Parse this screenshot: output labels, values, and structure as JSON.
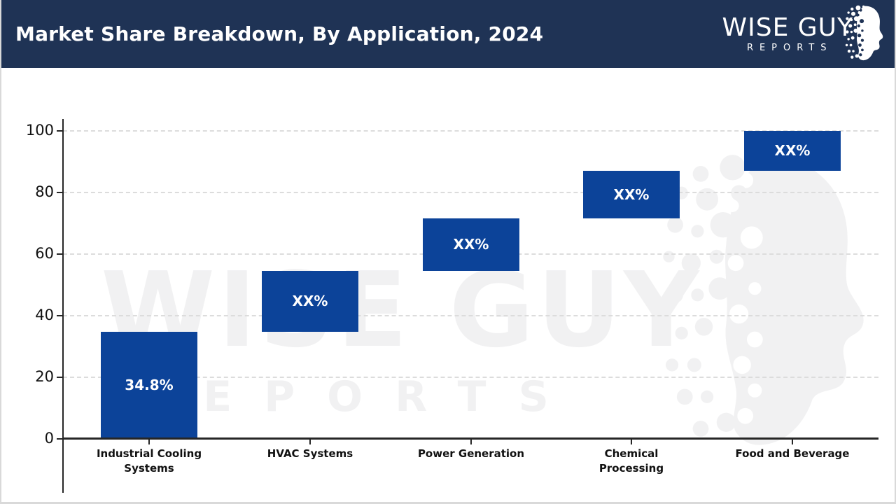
{
  "header": {
    "title": "Market Share Breakdown, By Application, 2024",
    "logo": {
      "line1": "WISE GUY",
      "line2": "REPORTS"
    }
  },
  "watermark": {
    "line1": "WISE GUY",
    "line2": "REPORTS"
  },
  "colors": {
    "header_bg": "#1f3355",
    "bar_blue": "#0c4399",
    "grid": "#dcdcdc",
    "axis": "#262626",
    "watermark": "#f1f1f2",
    "bar_label_text": "#ffffff"
  },
  "chart_data": {
    "type": "bar",
    "subtype": "waterfall-floating-bars",
    "title": "Market Share Breakdown, By Application, 2024",
    "xlabel": "",
    "ylabel": "",
    "ylim": [
      0,
      100
    ],
    "yticks": [
      0,
      20,
      40,
      60,
      80,
      100
    ],
    "grid": "horizontal-dashed",
    "legend": "none",
    "categories": [
      "Industrial Cooling Systems",
      "HVAC Systems",
      "Power Generation",
      "Chemical Processing",
      "Food and Beverage"
    ],
    "category_lines": [
      [
        "Industrial Cooling",
        "Systems"
      ],
      [
        "HVAC Systems"
      ],
      [
        "Power Generation"
      ],
      [
        "Chemical",
        "Processing"
      ],
      [
        "Food and Beverage"
      ]
    ],
    "segments": [
      {
        "category": "Industrial Cooling Systems",
        "start": 0,
        "end": 34.8,
        "label": "34.8%"
      },
      {
        "category": "HVAC Systems",
        "start": 34.8,
        "end": 54.6,
        "label": "XX%"
      },
      {
        "category": "Power Generation",
        "start": 54.6,
        "end": 71.7,
        "label": "XX%"
      },
      {
        "category": "Chemical Processing",
        "start": 71.7,
        "end": 87.1,
        "label": "XX%"
      },
      {
        "category": "Food and Beverage",
        "start": 87.1,
        "end": 100,
        "label": "XX%"
      }
    ]
  }
}
